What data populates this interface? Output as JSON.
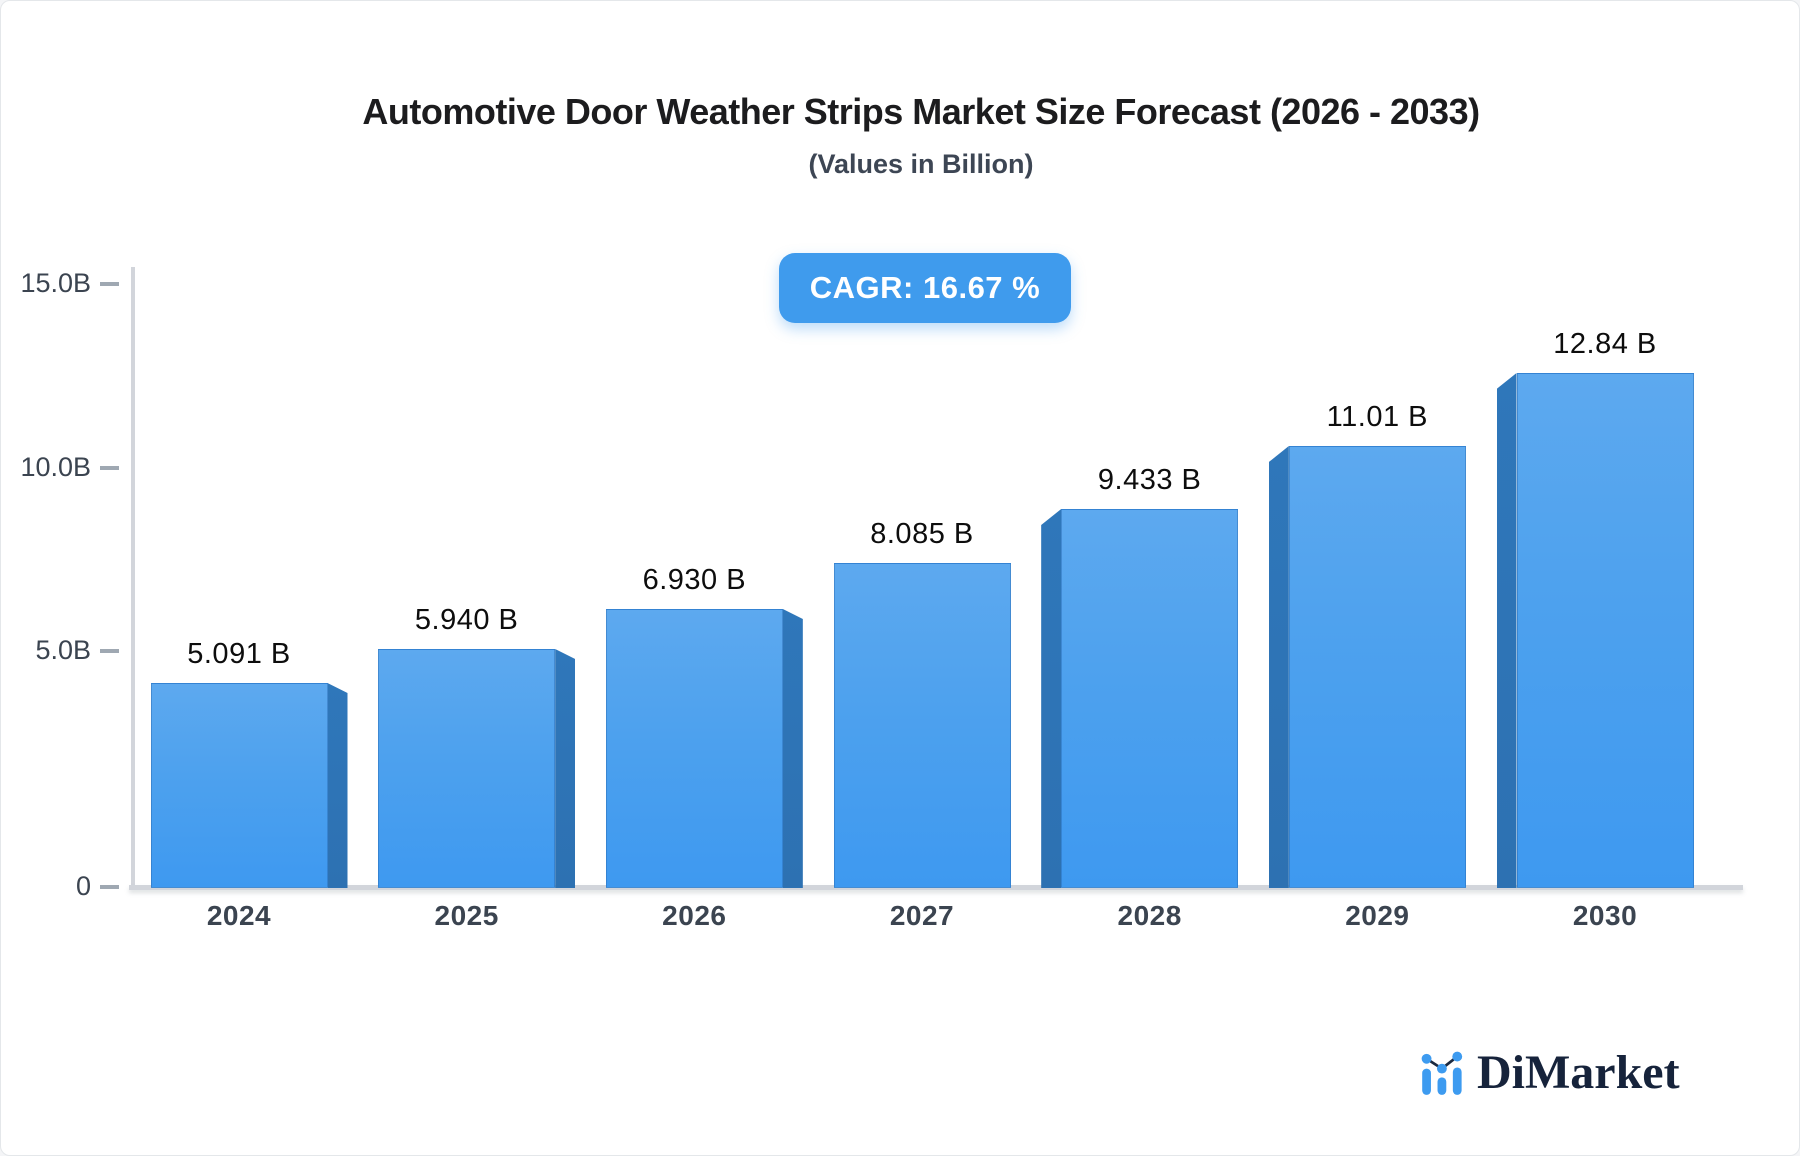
{
  "header": {
    "title": "Automotive Door Weather Strips Market Size Forecast (2026 - 2033)",
    "subtitle": "(Values in Billion)",
    "cagr_badge": "CAGR: 16.67 %"
  },
  "chart_data": {
    "type": "bar",
    "title": "Automotive Door Weather Strips Market Size Forecast (2026 - 2033)",
    "subtitle": "(Values in Billion)",
    "cagr_percent": 16.67,
    "categories": [
      "2024",
      "2025",
      "2026",
      "2027",
      "2028",
      "2029",
      "2030"
    ],
    "values": [
      5.091,
      5.94,
      6.93,
      8.085,
      9.433,
      11.01,
      12.84
    ],
    "value_labels": [
      "5.091 B",
      "5.940 B",
      "6.930 B",
      "8.085 B",
      "9.433 B",
      "11.01 B",
      "12.84 B"
    ],
    "yticks": [
      {
        "value": 0,
        "label": "0"
      },
      {
        "value": 5,
        "label": "5.0B"
      },
      {
        "value": 10,
        "label": "10.0B"
      },
      {
        "value": 15,
        "label": "15.0B"
      }
    ],
    "ylim": [
      0,
      15
    ],
    "grid": false,
    "legend": null,
    "bar_color": "#3f9bf0",
    "bar_side_color": "#2e74b8",
    "axis_color": "#d2d5db",
    "tick_text_color": "#3b4450",
    "value_text_color": "#0d0d0d"
  },
  "footer": {
    "brand": "DiMarket"
  }
}
